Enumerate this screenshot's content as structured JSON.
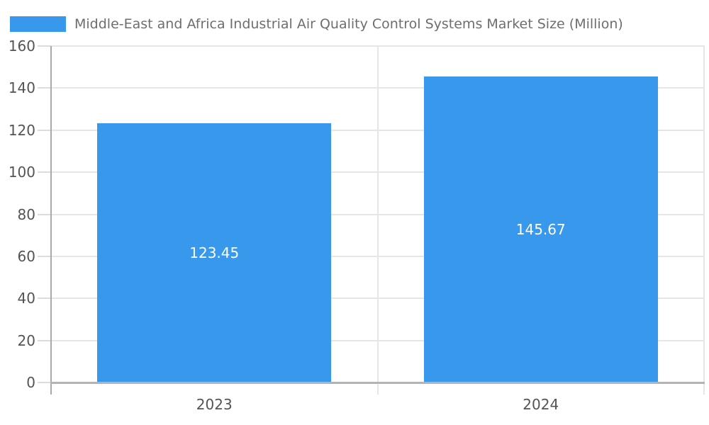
{
  "chart_data": {
    "type": "bar",
    "title": "Middle-East and Africa Industrial Air Quality Control Systems Market Size (Million)",
    "categories": [
      "2023",
      "2024"
    ],
    "series": [
      {
        "name": "Middle-East and Africa Industrial Air Quality Control Systems Market Size (Million)",
        "values": [
          123.45,
          145.67
        ]
      }
    ],
    "value_labels": [
      "123.45",
      "145.67"
    ],
    "y_ticks": [
      0,
      20,
      40,
      60,
      80,
      100,
      120,
      140,
      160
    ],
    "ylim": [
      0,
      160
    ],
    "xlabel": "",
    "ylabel": "",
    "grid": true,
    "legend_position": "top-left",
    "colors": {
      "bar": "#3899EC",
      "title_text": "#6e6e6e",
      "tick_text": "#545454",
      "bar_label_text": "#ffffff",
      "gridline": "#e6e6e6",
      "tick_mark": "#dcdcdc",
      "y_axis": "#a9a9a9",
      "x_axis": "#b3b3b3",
      "background": "#ffffff"
    }
  }
}
